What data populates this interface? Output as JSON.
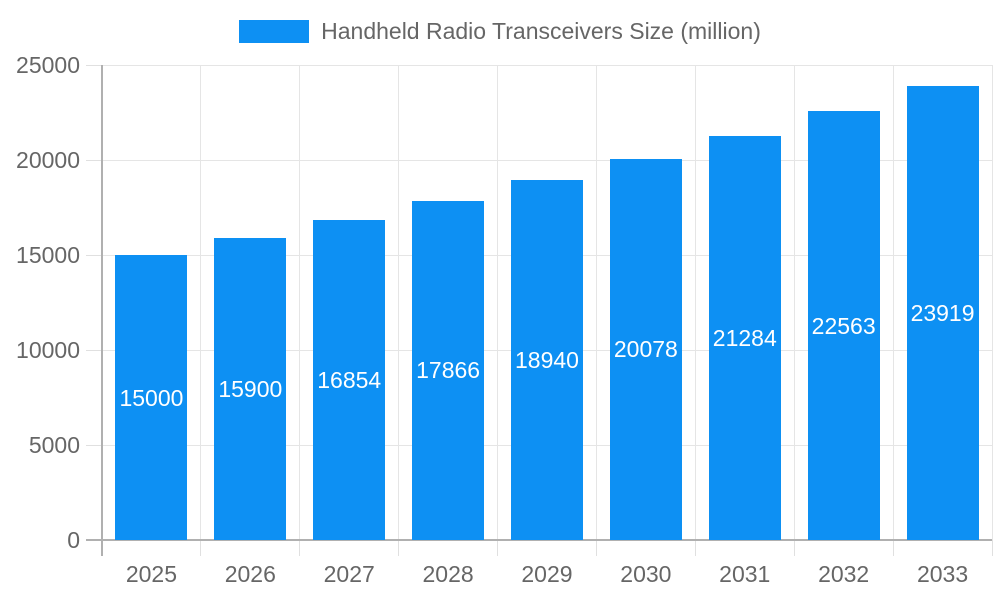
{
  "chart_data": {
    "type": "bar",
    "title": "Handheld Radio Transceivers Size (million)",
    "legend_position": "top",
    "categories": [
      "2025",
      "2026",
      "2027",
      "2028",
      "2029",
      "2030",
      "2031",
      "2032",
      "2033"
    ],
    "series": [
      {
        "name": "Handheld Radio Transceivers Size (million)",
        "values": [
          15000,
          15900,
          16854,
          17866,
          18940,
          20078,
          21284,
          22563,
          23919
        ]
      }
    ],
    "value_labels_shown": true,
    "xlabel": "",
    "ylabel": "",
    "ylim": [
      0,
      25000
    ],
    "yticks": [
      0,
      5000,
      10000,
      15000,
      20000,
      25000
    ],
    "grid": true,
    "colors": {
      "bar": "#0d90f3",
      "value_label": "#ffffff",
      "tick_label": "#666666",
      "grid_line": "#e5e5e5",
      "tick_mark": "#e0e0e0",
      "axis_line": "#b0b0b0"
    }
  }
}
